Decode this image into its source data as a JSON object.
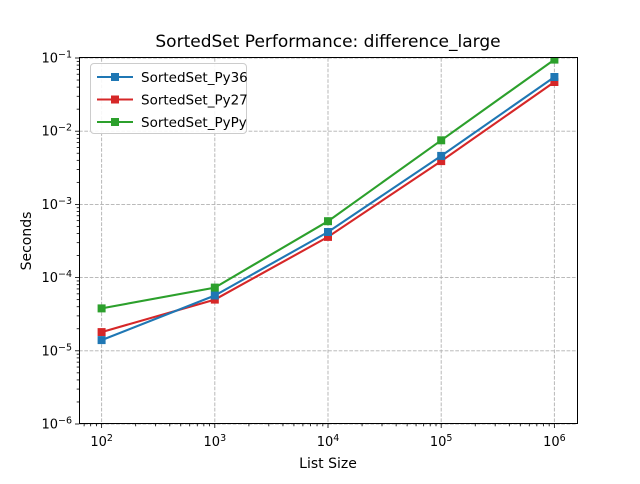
{
  "chart_data": {
    "type": "line",
    "title": "SortedSet Performance: difference_large",
    "xlabel": "List Size",
    "ylabel": "Seconds",
    "x_scale": "log",
    "y_scale": "log",
    "xlim": [
      63.1,
      1584893
    ],
    "ylim": [
      1e-06,
      0.1
    ],
    "grid": true,
    "grid_style": "dashed",
    "grid_color": "#b0b0b0",
    "background_color": "#ffffff",
    "marker": "square",
    "legend_position": "upper-left",
    "x": [
      100,
      1000,
      10000,
      100000,
      1000000
    ],
    "series": [
      {
        "name": "SortedSet_Py36",
        "color": "#1f77b4",
        "values": [
          1.4e-05,
          5.7e-05,
          0.00042,
          0.0046,
          0.055
        ]
      },
      {
        "name": "SortedSet_Py27",
        "color": "#d62728",
        "values": [
          1.8e-05,
          5e-05,
          0.00036,
          0.0039,
          0.047
        ]
      },
      {
        "name": "SortedSet_PyPy",
        "color": "#2ca02c",
        "values": [
          3.8e-05,
          7.3e-05,
          0.00059,
          0.0075,
          0.095
        ]
      }
    ],
    "x_ticks": [
      {
        "value": 100,
        "base": "10",
        "exp": "2"
      },
      {
        "value": 1000,
        "base": "10",
        "exp": "3"
      },
      {
        "value": 10000,
        "base": "10",
        "exp": "4"
      },
      {
        "value": 100000,
        "base": "10",
        "exp": "5"
      },
      {
        "value": 1000000,
        "base": "10",
        "exp": "6"
      }
    ],
    "y_ticks": [
      {
        "value": 0.1,
        "base": "10",
        "exp": "−1"
      },
      {
        "value": 0.01,
        "base": "10",
        "exp": "−2"
      },
      {
        "value": 0.001,
        "base": "10",
        "exp": "−3"
      },
      {
        "value": 0.0001,
        "base": "10",
        "exp": "−4"
      },
      {
        "value": 1e-05,
        "base": "10",
        "exp": "−5"
      },
      {
        "value": 1e-06,
        "base": "10",
        "exp": "−6"
      }
    ]
  }
}
